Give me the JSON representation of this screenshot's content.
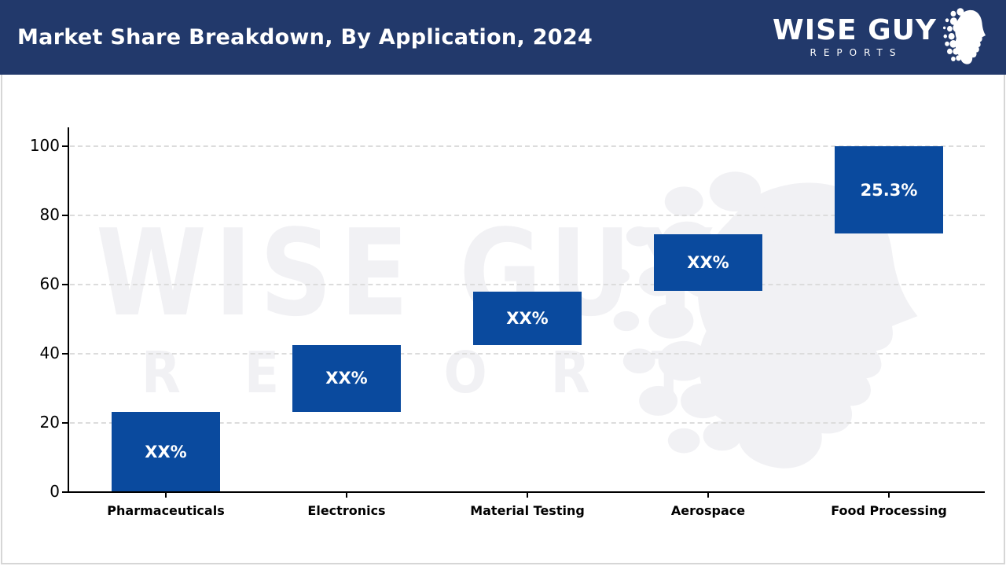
{
  "header": {
    "title": "Market Share Breakdown, By Application, 2024",
    "logo": {
      "line1": "WISE GUY",
      "line2": "REPORTS"
    }
  },
  "watermark": {
    "line1": "WISE GUY",
    "line2": "REPORTS"
  },
  "colors": {
    "header_bg": "#22396B",
    "bar": "#0A4A9E",
    "grid": "#DCDCDC",
    "axis": "#000000",
    "bar_label_text": "#FFFFFF",
    "watermark": "#F1F1F4"
  },
  "chart_data": {
    "type": "bar",
    "subtype": "waterfall",
    "title": "Market Share Breakdown, By Application, 2024",
    "categories": [
      "Pharmaceuticals",
      "Electronics",
      "Material Testing",
      "Aerospace",
      "Food Processing"
    ],
    "segments": [
      {
        "category": "Pharmaceuticals",
        "start": 0,
        "end": 23.2,
        "value_label": "XX%"
      },
      {
        "category": "Electronics",
        "start": 23.2,
        "end": 42.5,
        "value_label": "XX%"
      },
      {
        "category": "Material Testing",
        "start": 42.5,
        "end": 58.0,
        "value_label": "XX%"
      },
      {
        "category": "Aerospace",
        "start": 58.2,
        "end": 74.5,
        "value_label": "XX%"
      },
      {
        "category": "Food Processing",
        "start": 74.7,
        "end": 100,
        "value_label": "25.3%"
      }
    ],
    "yticks": [
      0,
      20,
      40,
      60,
      80,
      100
    ],
    "ylim": [
      0,
      100
    ],
    "xlabel": "",
    "ylabel": "",
    "grid": "horizontal-dashed",
    "legend": "none"
  }
}
